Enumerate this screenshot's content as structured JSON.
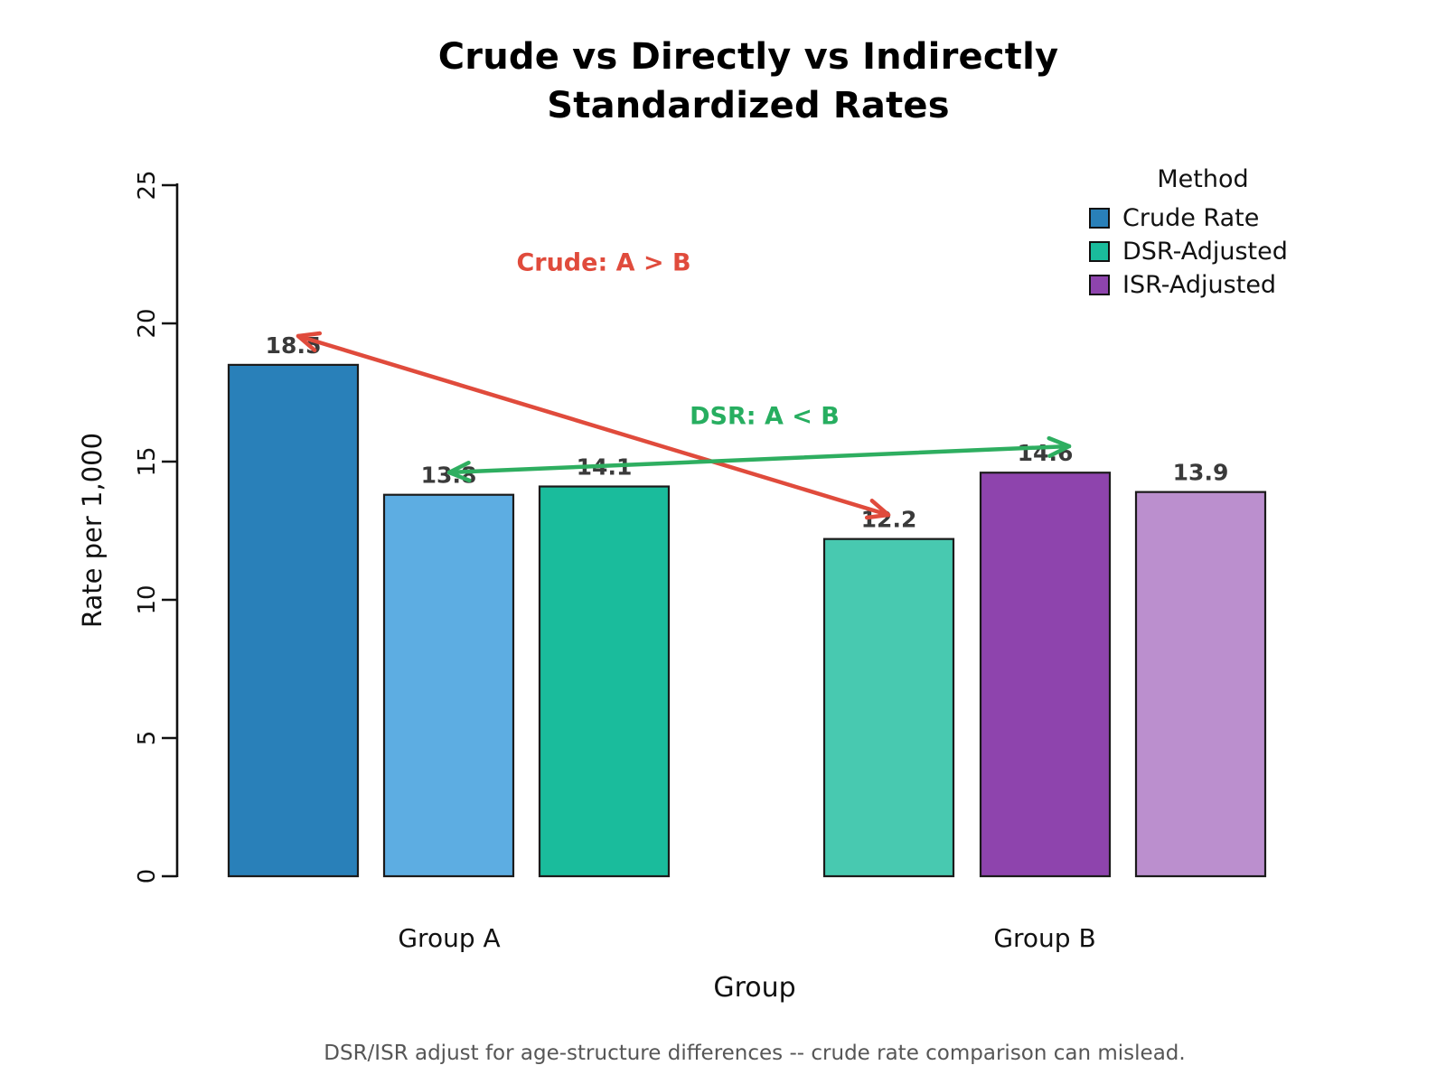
{
  "title": {
    "line1": "Crude vs Directly vs Indirectly",
    "line2": "Standardized Rates"
  },
  "y_axis": {
    "label": "Rate per 1,000"
  },
  "x_axis": {
    "label": "Group"
  },
  "legend": {
    "title": "Method",
    "items": [
      {
        "label": "Crude Rate",
        "color": "#2980B9"
      },
      {
        "label": "DSR-Adjusted",
        "color": "#1ABC9C"
      },
      {
        "label": "ISR-Adjusted",
        "color": "#8E44AD"
      }
    ]
  },
  "annotations": {
    "crude": {
      "text": "Crude: A > B",
      "color": "#E04B3C",
      "arrow_color": "#E04B3C"
    },
    "dsr": {
      "text": "DSR: A < B",
      "color": "#27AE60",
      "arrow_color": "#2EAE60"
    }
  },
  "footnote": "DSR/ISR adjust for age-structure differences -- crude rate comparison can mislead.",
  "chart_data": {
    "type": "bar",
    "title": "Crude vs Directly vs Indirectly Standardized Rates",
    "categories": [
      "Group A",
      "Group B"
    ],
    "series": [
      {
        "name": "Crude Rate",
        "values": [
          18.5,
          12.2
        ],
        "colors": [
          "#2980B9",
          "#48C9B0"
        ]
      },
      {
        "name": "DSR-Adjusted",
        "values": [
          13.8,
          14.6
        ],
        "colors": [
          "#5DADE2",
          "#8E44AD"
        ]
      },
      {
        "name": "ISR-Adjusted",
        "values": [
          14.1,
          13.9
        ],
        "colors": [
          "#1ABC9C",
          "#BB8FCE"
        ]
      }
    ],
    "bar_labels": [
      [
        "18.5",
        "13.8",
        "14.1"
      ],
      [
        "12.2",
        "14.6",
        "13.9"
      ]
    ],
    "xlabel": "Group",
    "ylabel": "Rate per 1,000",
    "ylim": [
      0,
      25
    ],
    "yticks": [
      0,
      5,
      10,
      15,
      20,
      25
    ],
    "grid": false,
    "legend_position": "upper right",
    "bar_edge_color": "#1b1b1b",
    "value_label_color": "#3a3a3a"
  }
}
